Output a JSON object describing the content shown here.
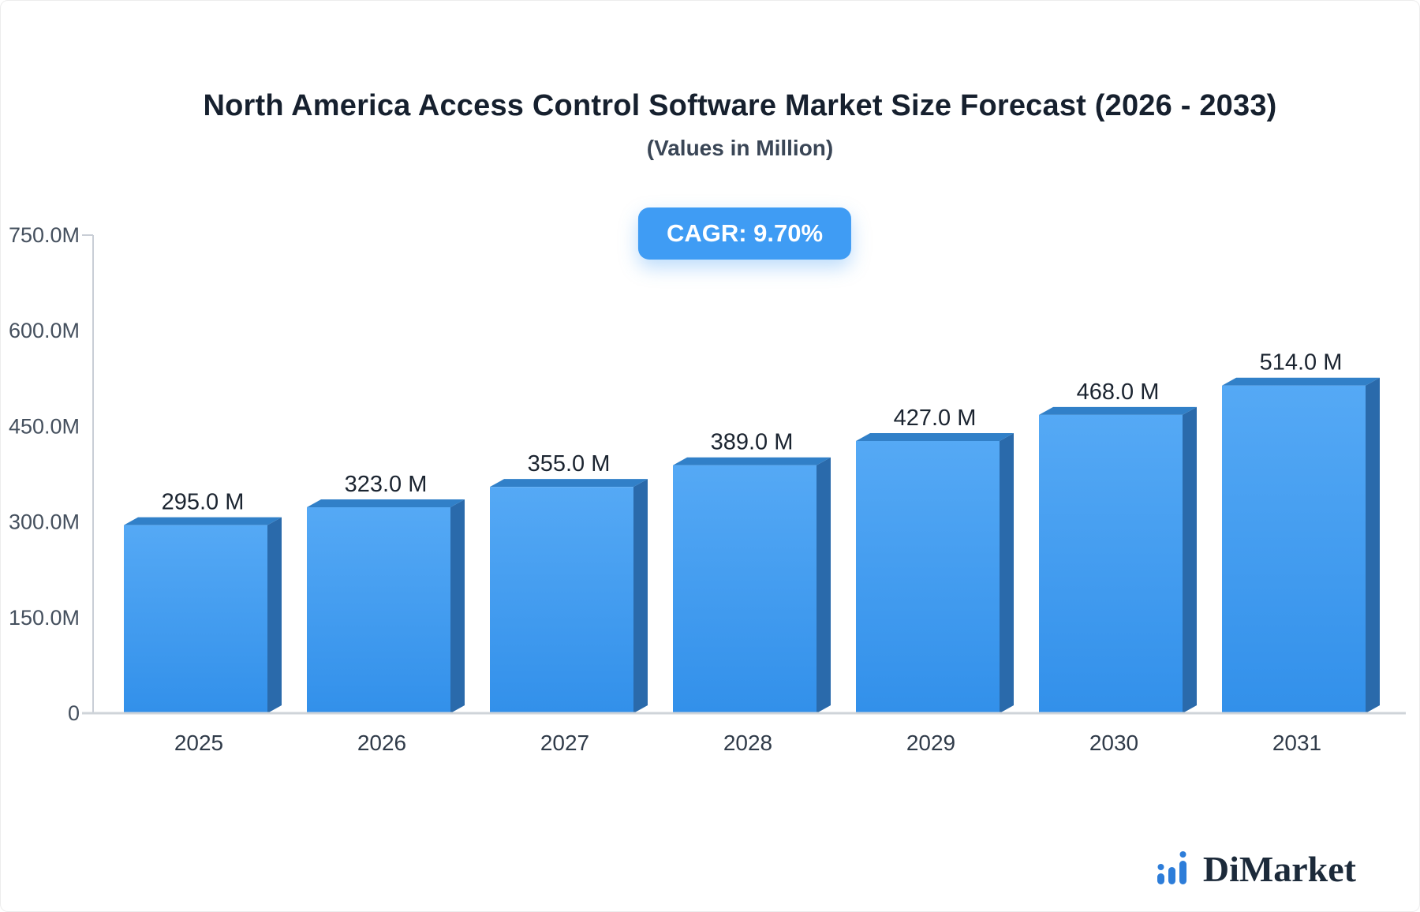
{
  "header": {
    "title": "North America Access Control Software Market Size Forecast (2026 - 2033)",
    "subtitle": "(Values in Million)"
  },
  "badge": {
    "label": "CAGR: 9.70%"
  },
  "logo": {
    "text": "DiMarket"
  },
  "colors": {
    "badge_bg": "#3f9cf4",
    "bar_front_top": "#55a9f5",
    "bar_front_bottom": "#3290ea",
    "bar_side": "#2a6aab",
    "bar_top": "#3180c8",
    "axis_line": "#c9ced6",
    "baseline": "#cfd4d9",
    "value_label": "#1b2430",
    "x_label": "#303b49",
    "y_label": "#45505e",
    "logo_icon": "#2d7dd9",
    "logo_text": "#1c2a3a"
  },
  "chart_data": {
    "type": "bar",
    "title": "North America Access Control Software Market Size Forecast (2026 - 2033)",
    "subtitle": "(Values in Million)",
    "categories": [
      "2025",
      "2026",
      "2027",
      "2028",
      "2029",
      "2030",
      "2031"
    ],
    "values": [
      295.0,
      323.0,
      355.0,
      389.0,
      427.0,
      468.0,
      514.0
    ],
    "value_labels": [
      "295.0 M",
      "323.0 M",
      "355.0 M",
      "389.0 M",
      "427.0 M",
      "468.0 M",
      "514.0 M"
    ],
    "ylim": [
      0,
      750
    ],
    "y_ticks": [
      {
        "value": 750,
        "label": "750.0M"
      },
      {
        "value": 600,
        "label": "600.0M"
      },
      {
        "value": 450,
        "label": "450.0M"
      },
      {
        "value": 300,
        "label": "300.0M"
      },
      {
        "value": 150,
        "label": "150.0M"
      },
      {
        "value": 0,
        "label": "0"
      }
    ],
    "grid": false,
    "legend": false,
    "annotation": "CAGR: 9.70%"
  }
}
